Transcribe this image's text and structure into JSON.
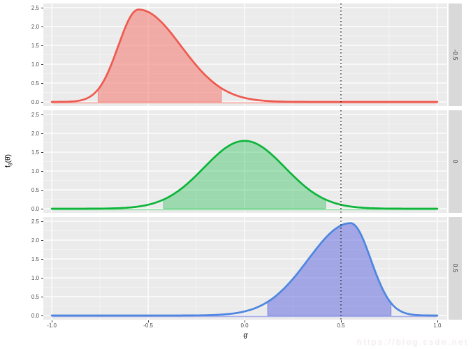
{
  "chart_data": {
    "type": "area",
    "title": "",
    "xlabel": "θ̂",
    "ylabel": "fθ(θ̂)",
    "ylabel_f": "f",
    "ylabel_sub": "θ",
    "ylabel_rest": "(θ̂)",
    "xlim": [
      -1.044,
      1.051
    ],
    "ylim": [
      0,
      2.61
    ],
    "grid": true,
    "legend_position": "none",
    "panel_background": "#EBEBEB",
    "strip_background": "#D9D9D9",
    "x_ticks": [
      -1.0,
      -0.5,
      0.0,
      0.5,
      1.0
    ],
    "x_tick_labels": [
      "-1.0",
      "-0.5",
      "0.0",
      "0.5",
      "1.0"
    ],
    "y_ticks": [
      0.0,
      0.5,
      1.0,
      1.5,
      2.0,
      2.5
    ],
    "y_tick_labels": [
      "0.0",
      "0.5",
      "1.0",
      "1.5",
      "2.0",
      "2.5"
    ],
    "x_minor_ticks": [
      -0.75,
      -0.25,
      0.25,
      0.75
    ],
    "y_minor_ticks": [
      0.25,
      0.75,
      1.25,
      1.75,
      2.25
    ],
    "reference_line": {
      "x": 0.5,
      "style": "dotted",
      "color": "#1a1a1a"
    },
    "facets": [
      {
        "label": "-0.5",
        "color": "#EE5A4F",
        "fill": "rgba(244,118,110,0.55)",
        "edge": "rgba(244,118,110,0.7)",
        "baseline_color": "#F3AFA9",
        "curve": {
          "shape": "two-piece-gaussian",
          "mode": -0.55,
          "peak": 2.45,
          "sigma_left": 0.105,
          "sigma_right": 0.22
        },
        "shaded_interval": [
          -0.76,
          -0.12
        ],
        "sample_x": [
          -1,
          -0.9,
          -0.8,
          -0.7,
          -0.6,
          -0.5,
          -0.4,
          -0.3,
          -0.2,
          -0.1,
          0,
          0.1,
          0.2,
          0.3,
          0.4,
          0.5,
          0.6,
          0.7,
          0.8,
          0.9,
          1
        ],
        "sample_y": [
          0,
          0.01,
          0.14,
          0.88,
          2.19,
          2.39,
          1.94,
          1.28,
          0.69,
          0.3,
          0.11,
          0.03,
          0.01,
          0,
          0,
          0,
          0,
          0,
          0,
          0,
          0
        ]
      },
      {
        "label": "0",
        "color": "#0DB53B",
        "fill": "rgba(28,190,80,0.38)",
        "edge": "rgba(28,190,80,0.55)",
        "baseline_color": "#9FE0AD",
        "curve": {
          "shape": "gaussian",
          "mode": 0.0,
          "peak": 1.8,
          "sigma_left": 0.21,
          "sigma_right": 0.21
        },
        "shaded_interval": [
          -0.42,
          0.42
        ],
        "sample_x": [
          -1,
          -0.9,
          -0.8,
          -0.7,
          -0.6,
          -0.5,
          -0.4,
          -0.3,
          -0.2,
          -0.1,
          0,
          0.1,
          0.2,
          0.3,
          0.4,
          0.5,
          0.6,
          0.7,
          0.8,
          0.9,
          1
        ],
        "sample_y": [
          0,
          0,
          0,
          0.01,
          0.03,
          0.11,
          0.29,
          0.65,
          1.14,
          1.61,
          1.8,
          1.61,
          1.14,
          0.65,
          0.29,
          0.11,
          0.03,
          0.01,
          0,
          0,
          0
        ]
      },
      {
        "label": "0.5",
        "color": "#4E86E0",
        "fill": "rgba(96,104,222,0.52)",
        "edge": "rgba(96,104,222,0.65)",
        "baseline_color": "#ABAFE9",
        "curve": {
          "shape": "two-piece-gaussian",
          "mode": 0.55,
          "peak": 2.45,
          "sigma_left": 0.22,
          "sigma_right": 0.105
        },
        "shaded_interval": [
          0.12,
          0.76
        ],
        "sample_x": [
          -1,
          -0.9,
          -0.8,
          -0.7,
          -0.6,
          -0.5,
          -0.4,
          -0.3,
          -0.2,
          -0.1,
          0,
          0.1,
          0.2,
          0.3,
          0.4,
          0.5,
          0.6,
          0.7,
          0.8,
          0.9,
          1
        ],
        "sample_y": [
          0,
          0,
          0,
          0,
          0,
          0,
          0,
          0,
          0.01,
          0.03,
          0.11,
          0.3,
          0.69,
          1.28,
          1.94,
          2.39,
          2.19,
          0.88,
          0.14,
          0.01,
          0
        ]
      }
    ]
  },
  "watermark": {
    "text": "https://blog.csdn.net"
  }
}
